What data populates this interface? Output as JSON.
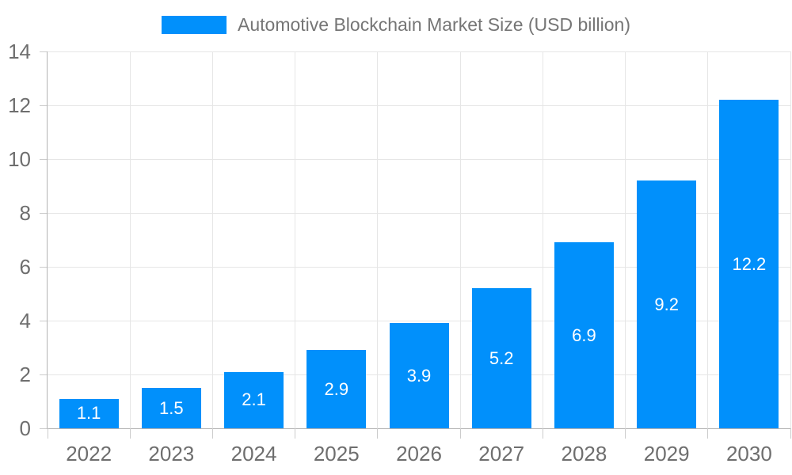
{
  "chart_data": {
    "type": "bar",
    "title": "Automotive Blockchain Market Size (USD billion)",
    "categories": [
      "2022",
      "2023",
      "2024",
      "2025",
      "2026",
      "2027",
      "2028",
      "2029",
      "2030"
    ],
    "values": [
      1.1,
      1.5,
      2.1,
      2.9,
      3.9,
      5.2,
      6.9,
      9.2,
      12.2
    ],
    "bar_labels": [
      "1.1",
      "1.5",
      "2.1",
      "2.9",
      "3.9",
      "5.2",
      "6.9",
      "9.2",
      "12.2"
    ],
    "xlabel": "",
    "ylabel": "",
    "ylim": [
      0,
      14
    ],
    "ytick_step": 2,
    "ytick_labels": [
      "0",
      "2",
      "4",
      "6",
      "8",
      "10",
      "12",
      "14"
    ],
    "grid": true,
    "legend_position": "top-center"
  },
  "colors": {
    "bar": "#0190fb",
    "bar_label": "#ffffff",
    "legend_text": "#757575",
    "axis_text": "#6e6e6e",
    "grid_line": "#e6e6e6",
    "axis_line": "#b3b3b3",
    "tick_mark": "#cccccc",
    "background": "#ffffff"
  }
}
